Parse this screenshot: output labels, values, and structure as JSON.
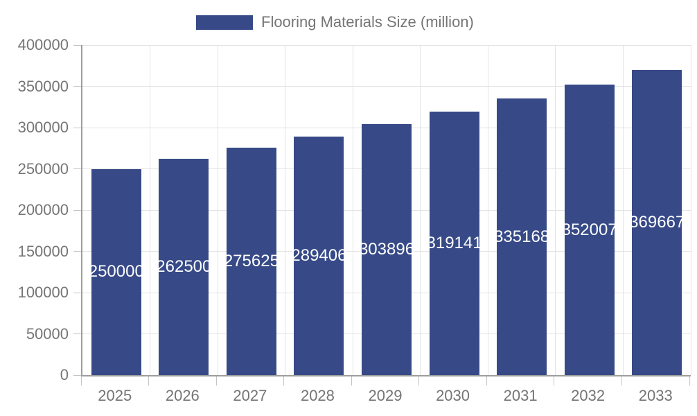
{
  "legend": {
    "label": "Flooring Materials Size (million)"
  },
  "chart_data": {
    "type": "bar",
    "title": "",
    "series_name": "Flooring Materials Size (million)",
    "categories": [
      "2025",
      "2026",
      "2027",
      "2028",
      "2029",
      "2030",
      "2031",
      "2032",
      "2033"
    ],
    "values": [
      250000,
      262500,
      275625,
      289406,
      303896,
      319141,
      335168,
      352007,
      369667
    ],
    "xlabel": "",
    "ylabel": "",
    "ylim": [
      0,
      400000
    ],
    "ytick_step": 50000,
    "yticks": [
      0,
      50000,
      100000,
      150000,
      200000,
      250000,
      300000,
      350000,
      400000
    ],
    "grid": true,
    "legend_position": "top-center",
    "value_labels": "inside-center-white",
    "bar_color": "#374a87",
    "value_label_color": "#ffffff",
    "axis_text_color": "#757575",
    "gridline_color": "#e3e3e3",
    "axis_line_color": "#9e9e9e",
    "background_color": "#ffffff"
  }
}
